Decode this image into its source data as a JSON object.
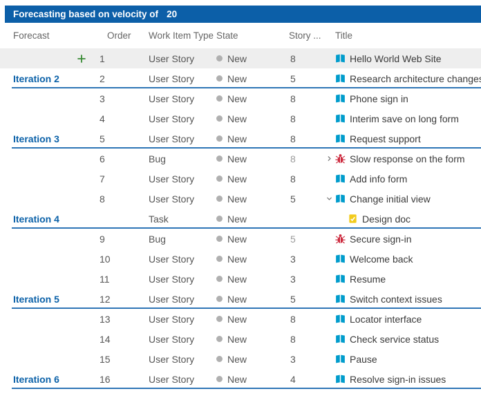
{
  "velocity_bar": {
    "label": "Forecasting based on velocity of",
    "value": "20"
  },
  "columns": [
    "Forecast",
    "Order",
    "Work Item Type",
    "State",
    "Story ...",
    "Title"
  ],
  "colors": {
    "bar_blue": "#0c5fa8",
    "iteration_blue": "#0b61a8",
    "forecast_line_blue": "#2e75b6",
    "user_story_icon": "#009ccc",
    "bug_icon": "#cc293d",
    "task_icon": "#f2cb1d",
    "add_icon_green": "#388a34",
    "state_dot_gray": "#b0b0b0",
    "selected_row_bg": "#eeeeee"
  },
  "table": {
    "rows": [
      {
        "forecast": "",
        "plus": true,
        "order": "1",
        "type": "User Story",
        "state": "New",
        "points": "8",
        "icon": "user-story",
        "title": "Hello World Web Site",
        "highlighted": true
      },
      {
        "forecast": "Iteration 2",
        "order": "2",
        "type": "User Story",
        "state": "New",
        "points": "5",
        "icon": "user-story",
        "title": "Research architecture changes",
        "line": true
      },
      {
        "forecast": "",
        "order": "3",
        "type": "User Story",
        "state": "New",
        "points": "8",
        "icon": "user-story",
        "title": "Phone sign in"
      },
      {
        "forecast": "",
        "order": "4",
        "type": "User Story",
        "state": "New",
        "points": "8",
        "icon": "user-story",
        "title": "Interim save on long form"
      },
      {
        "forecast": "Iteration 3",
        "order": "5",
        "type": "User Story",
        "state": "New",
        "points": "8",
        "icon": "user-story",
        "title": "Request support",
        "line": true
      },
      {
        "forecast": "",
        "order": "6",
        "type": "Bug",
        "state": "New",
        "points": "8",
        "points_dim": true,
        "chevron": "collapsed",
        "icon": "bug",
        "title": "Slow response on the form"
      },
      {
        "forecast": "",
        "order": "7",
        "type": "User Story",
        "state": "New",
        "points": "8",
        "icon": "user-story",
        "title": "Add info form"
      },
      {
        "forecast": "",
        "order": "8",
        "type": "User Story",
        "state": "New",
        "points": "5",
        "chevron": "expanded",
        "icon": "user-story",
        "title": "Change initial view"
      },
      {
        "forecast": "Iteration 4",
        "order": "",
        "type": "Task",
        "state": "New",
        "points": "",
        "icon": "task",
        "indent": true,
        "title": "Design doc",
        "line": true
      },
      {
        "forecast": "",
        "order": "9",
        "type": "Bug",
        "state": "New",
        "points": "5",
        "points_dim": true,
        "icon": "bug",
        "title": "Secure sign-in"
      },
      {
        "forecast": "",
        "order": "10",
        "type": "User Story",
        "state": "New",
        "points": "3",
        "icon": "user-story",
        "title": "Welcome back"
      },
      {
        "forecast": "",
        "order": "11",
        "type": "User Story",
        "state": "New",
        "points": "3",
        "icon": "user-story",
        "title": "Resume"
      },
      {
        "forecast": "Iteration 5",
        "order": "12",
        "type": "User Story",
        "state": "New",
        "points": "5",
        "icon": "user-story",
        "title": "Switch context issues",
        "line": true
      },
      {
        "forecast": "",
        "order": "13",
        "type": "User Story",
        "state": "New",
        "points": "8",
        "icon": "user-story",
        "title": "Locator interface"
      },
      {
        "forecast": "",
        "order": "14",
        "type": "User Story",
        "state": "New",
        "points": "8",
        "icon": "user-story",
        "title": "Check service status"
      },
      {
        "forecast": "",
        "order": "15",
        "type": "User Story",
        "state": "New",
        "points": "3",
        "icon": "user-story",
        "title": "Pause"
      },
      {
        "forecast": "Iteration 6",
        "order": "16",
        "type": "User Story",
        "state": "New",
        "points": "4",
        "icon": "user-story",
        "title": "Resolve sign-in issues",
        "line": true
      }
    ]
  }
}
